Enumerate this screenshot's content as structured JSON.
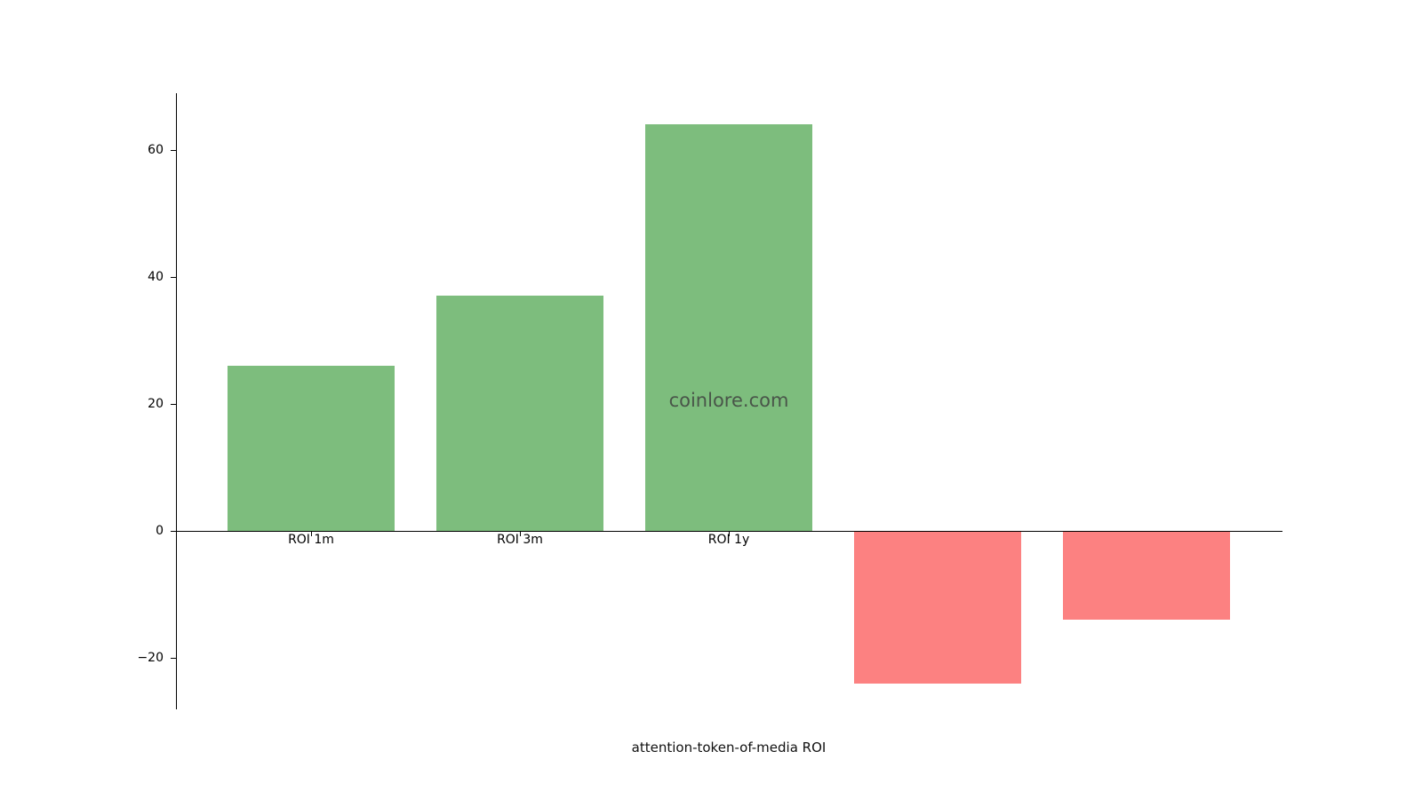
{
  "chart_data": {
    "type": "bar",
    "title": "",
    "xlabel": "attention-token-of-media ROI",
    "ylabel": "",
    "watermark": "coinlore.com",
    "categories": [
      "ROI 1m",
      "ROI 3m",
      "ROI 1y",
      "",
      ""
    ],
    "values": [
      26,
      37,
      64,
      -24,
      -14
    ],
    "yticks": [
      {
        "value": -20,
        "label": "−20"
      },
      {
        "value": 0,
        "label": "0"
      },
      {
        "value": 20,
        "label": "20"
      },
      {
        "value": 40,
        "label": "40"
      },
      {
        "value": 60,
        "label": "60"
      }
    ],
    "ylim": [
      -28,
      69
    ],
    "grid": false,
    "legend_position": "none",
    "colors": {
      "positive_bar": "#7dbd7d",
      "negative_bar": "#fc8181",
      "axis": "#000000",
      "tick_text": "#000000",
      "watermark_text": "#3e3e3e",
      "background": "#ffffff"
    }
  }
}
